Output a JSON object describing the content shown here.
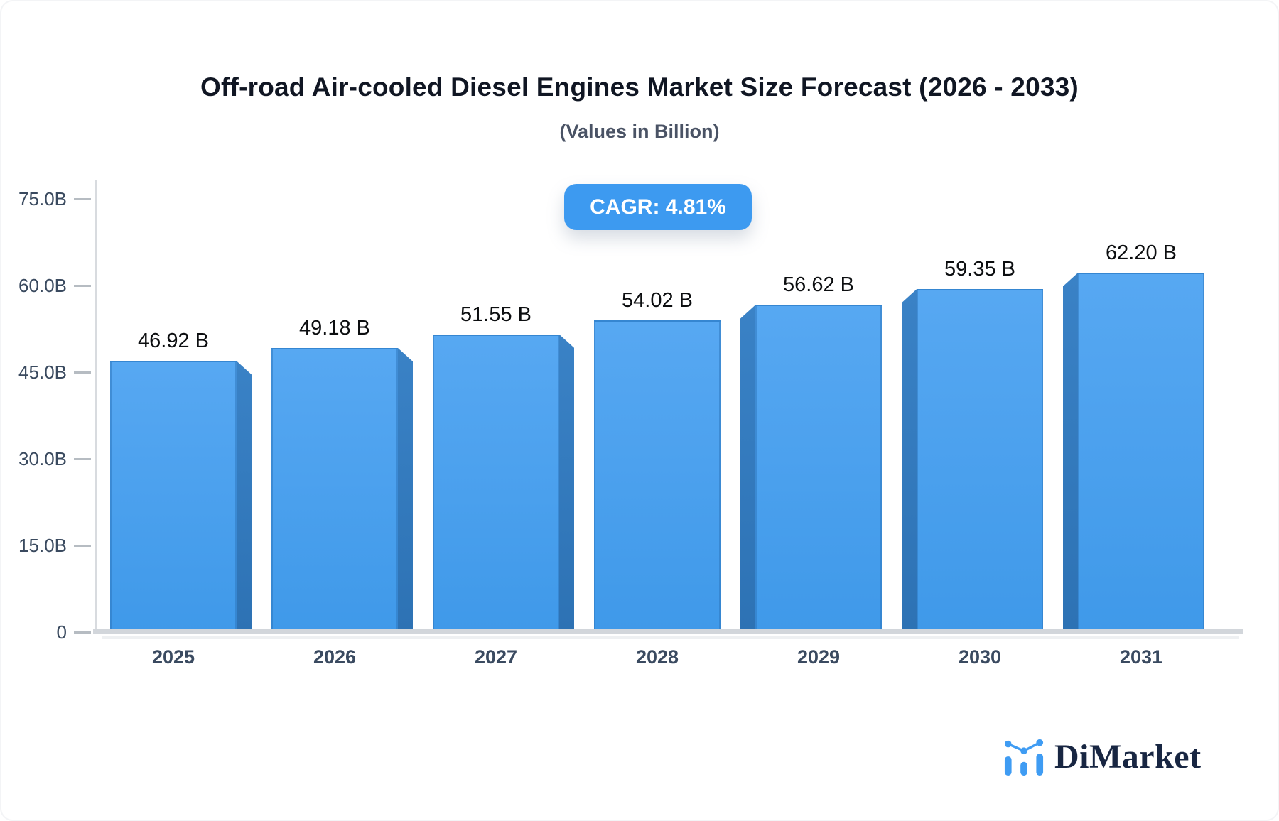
{
  "title": "Off-road Air-cooled Diesel Engines Market Size Forecast (2026 - 2033)",
  "subtitle": "(Values in Billion)",
  "badge": {
    "label": "CAGR: 4.81%"
  },
  "brand": {
    "name": "DiMarket"
  },
  "chart_data": {
    "type": "bar",
    "categories": [
      "2025",
      "2026",
      "2027",
      "2028",
      "2029",
      "2030",
      "2031"
    ],
    "values": [
      46.92,
      49.18,
      51.55,
      54.02,
      56.62,
      59.35,
      62.2
    ],
    "value_labels": [
      "46.92 B",
      "49.18 B",
      "51.55 B",
      "54.02 B",
      "56.62 B",
      "59.35 B",
      "62.20 B"
    ],
    "unit": "Billion",
    "ylim": [
      0,
      75
    ],
    "yticks": [
      {
        "value": 75,
        "label": "75.0B"
      },
      {
        "value": 60,
        "label": "60.0B"
      },
      {
        "value": 45,
        "label": "45.0B"
      },
      {
        "value": 30,
        "label": "30.0B"
      },
      {
        "value": 15,
        "label": "15.0B"
      },
      {
        "value": 0,
        "label": "0"
      }
    ],
    "grid": false,
    "legend": "none",
    "style": "3d-perspective-bars",
    "colors": {
      "accent_blue": "#3d9af0",
      "badge_bg": "#3d9af0",
      "badge_text": "#ffffff",
      "bar_face_top": "#57a8f2",
      "bar_face_bottom": "#3f99e9",
      "bar_side_top": "#3a82c6",
      "bar_side_bottom": "#2d72b4",
      "brand_navy": "#182642",
      "brand_icon_blue": "#3f9cf3"
    }
  }
}
